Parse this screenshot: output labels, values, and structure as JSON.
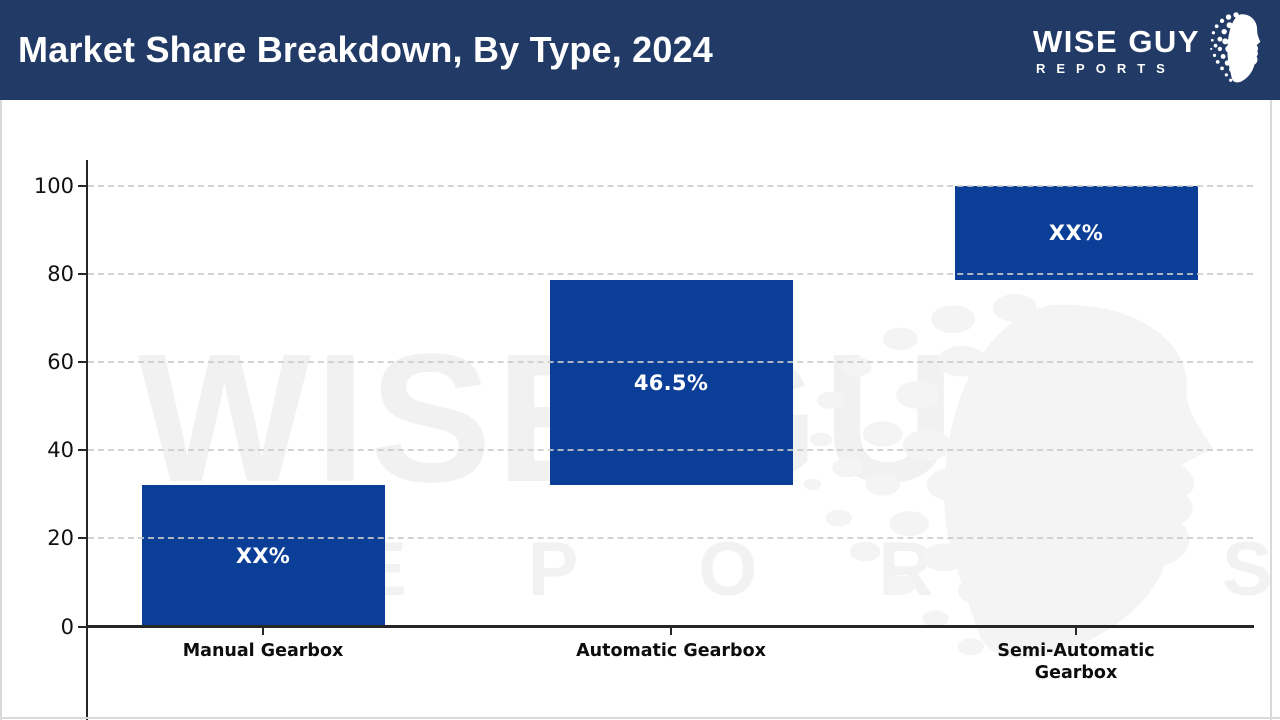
{
  "header": {
    "title": "Market Share Breakdown, By Type, 2024",
    "logo": {
      "wordmark": "WISE GUY",
      "subtext": "REPORTS"
    }
  },
  "watermark": {
    "wordmark": "WISE GUY",
    "subtext": "R E P O R T S"
  },
  "colors": {
    "header_bg": "#223a66",
    "bar_fill": "#0b3e97",
    "grid_line": "#cbcbcb",
    "axis_line": "#262626",
    "bar_label_text": "#ffffff",
    "watermark_text": "#f1f1f1",
    "page_border": "#d9d9d9"
  },
  "chart_data": {
    "type": "bar",
    "subtype": "floating-segment-columns (waterfall-style share breakdown, segments stack left to right)",
    "title": "Market Share Breakdown, By Type, 2024",
    "categories": [
      "Manual Gearbox",
      "Automatic Gearbox",
      "Semi-Automatic Gearbox"
    ],
    "series": [
      {
        "name": "Market share (%)",
        "segments": [
          {
            "category": "Manual Gearbox",
            "start": 0,
            "end": 32,
            "label": "XX%"
          },
          {
            "category": "Automatic Gearbox",
            "start": 32,
            "end": 78.5,
            "value": 46.5,
            "label": "46.5%"
          },
          {
            "category": "Semi-Automatic Gearbox",
            "start": 78.5,
            "end": 100,
            "label": "XX%"
          }
        ]
      }
    ],
    "xlabel": "",
    "ylabel": "",
    "ylim": [
      0,
      105
    ],
    "yticks": [
      0,
      20,
      40,
      60,
      80,
      100
    ],
    "grid": "horizontal dashed gridlines at y-ticks, drawn over the bars",
    "legend": "none"
  }
}
